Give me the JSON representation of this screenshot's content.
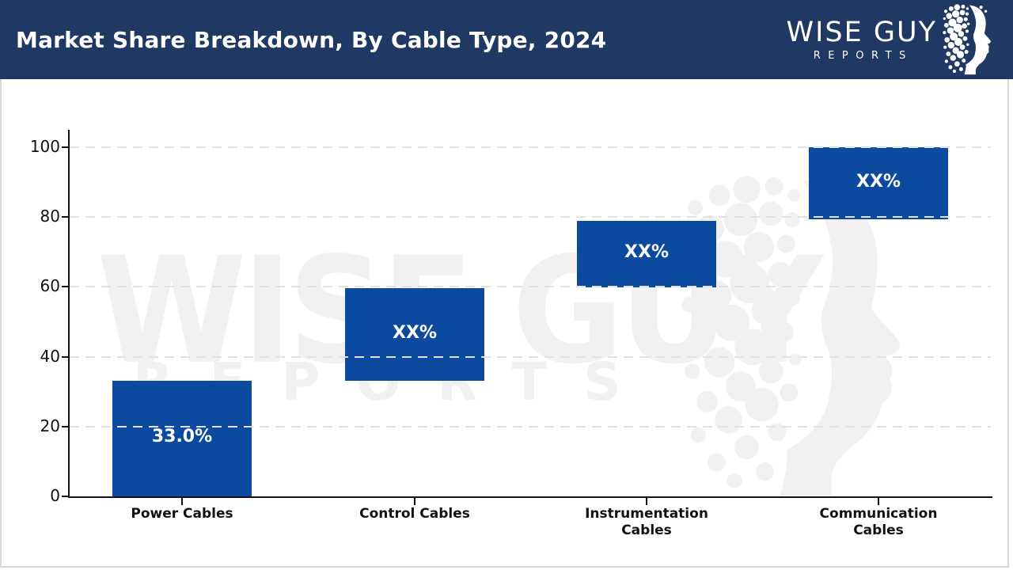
{
  "header": {
    "title": "Market Share Breakdown, By Cable Type, 2024",
    "logo": {
      "name": "WISE GUY",
      "subname": "REPORTS"
    }
  },
  "watermark": {
    "line1": "WISE GUY",
    "line2": "REPORTS"
  },
  "colors": {
    "header_bg": "#1f3864",
    "bar": "#0b4a9e",
    "bar_label": "#ffffff",
    "grid": "#e2e2e2",
    "axis": "#111111",
    "watermark": "#f1f1f2",
    "edge": "#d8d8d8"
  },
  "chart_data": {
    "type": "bar",
    "subtype": "floating-segment-waterfall",
    "title": "Market Share Breakdown, By Cable Type, 2024",
    "categories": [
      "Power Cables",
      "Control Cables",
      "Instrumentation Cables",
      "Communication Cables"
    ],
    "bars": [
      {
        "category": "Power Cables",
        "start": 0,
        "end": 33,
        "label": "33.0%"
      },
      {
        "category": "Control Cables",
        "start": 33,
        "end": 59.7,
        "label": "XX%"
      },
      {
        "category": "Instrumentation Cables",
        "start": 59.9,
        "end": 78.8,
        "label": "XX%"
      },
      {
        "category": "Communication Cables",
        "start": 79.3,
        "end": 99.9,
        "label": "XX%"
      }
    ],
    "yticks": [
      0,
      20,
      40,
      60,
      80,
      100
    ],
    "ylim": [
      0,
      105
    ],
    "xlabel": "",
    "ylabel": "",
    "grid": "horizontal-dashed",
    "legend": null,
    "bar_color": "#0b4a9e"
  }
}
